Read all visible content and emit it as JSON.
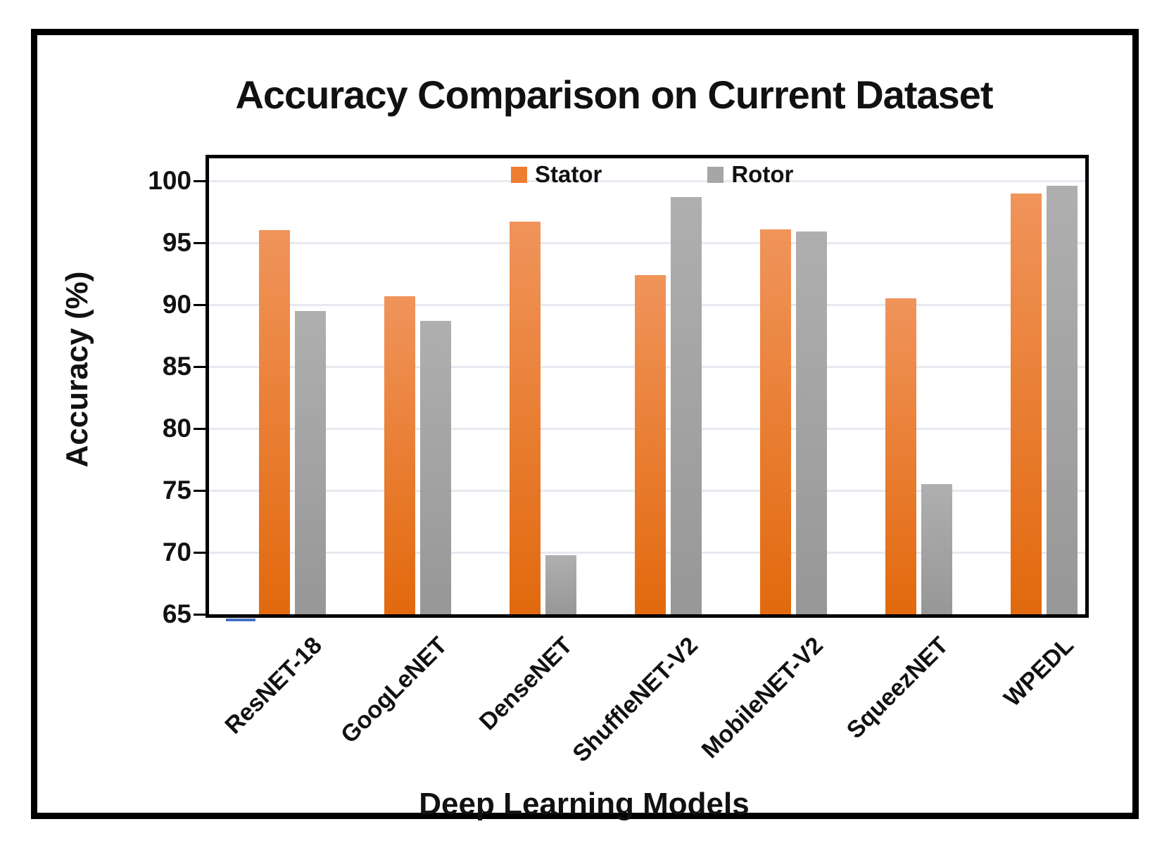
{
  "chart_data": {
    "type": "bar",
    "title": "Accuracy Comparison on Current Dataset",
    "xlabel": "Deep Learning Models",
    "ylabel": "Accuracy (%)",
    "ylim": [
      65,
      100
    ],
    "yticks": [
      100,
      95,
      90,
      85,
      80,
      75,
      70,
      65
    ],
    "grid": true,
    "legend_position": "top-center-inside",
    "categories": [
      "ResNET-18",
      "GoogLeNET",
      "DenseNET",
      "ShuffleNET-V2",
      "MobileNET-V2",
      "SqueezNET",
      "WPEDL"
    ],
    "series": [
      {
        "name": "Stator",
        "color": "#ED7D31",
        "color_top": "#F0945B",
        "color_bottom": "#E2690D",
        "values": [
          96.0,
          90.7,
          96.7,
          92.4,
          96.1,
          90.5,
          99.0
        ]
      },
      {
        "name": "Rotor",
        "color": "#A6A6A6",
        "color_top": "#AFAFAF",
        "color_bottom": "#979797",
        "values": [
          89.5,
          88.7,
          69.8,
          98.7,
          95.9,
          75.5,
          99.6
        ]
      }
    ],
    "baseline_marker": {
      "category": "ResNET-18",
      "color": "#4472C4"
    },
    "colors": {
      "gridline": "#E6E9F0",
      "axis": "#000000",
      "background": "#FFFFFF"
    }
  }
}
